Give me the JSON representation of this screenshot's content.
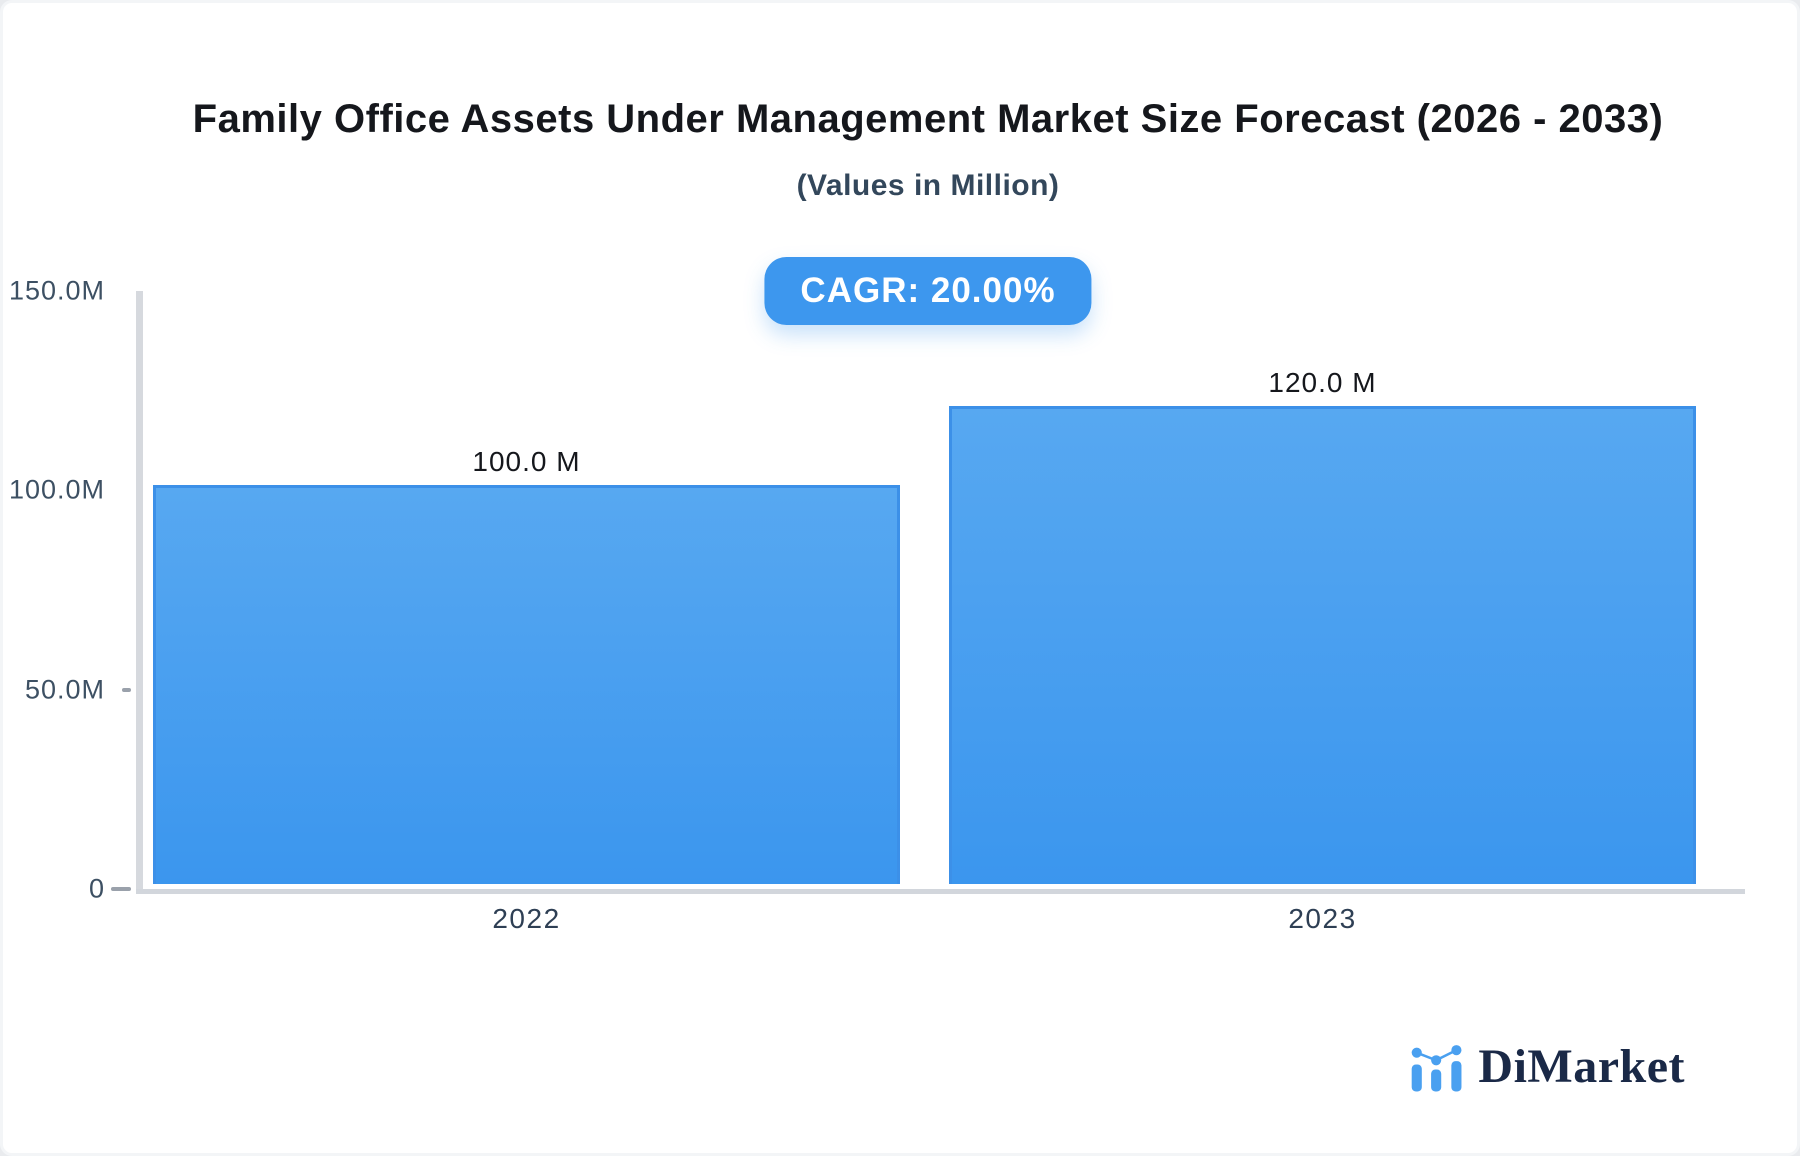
{
  "chart": {
    "title": "Family Office Assets Under Management Market Size Forecast (2026 - 2033)",
    "subtitle": "(Values in Million)",
    "cagr_label": "CAGR: 20.00%"
  },
  "chart_data": {
    "type": "bar",
    "title": "Family Office Assets Under Management Market Size Forecast (2026 - 2033)",
    "subtitle": "(Values in Million)",
    "cagr": "20.00%",
    "unit": "Million",
    "categories": [
      "2022",
      "2023"
    ],
    "values": [
      100.0,
      120.0
    ],
    "value_labels": [
      "100.0 M",
      "120.0 M"
    ],
    "xlabel": "",
    "ylabel": "",
    "ylim": [
      0,
      150
    ],
    "y_tick_values": [
      150,
      100,
      50,
      0
    ],
    "y_tick_labels": [
      "150.0M",
      "100.0M",
      "50.0M",
      "0"
    ],
    "y_tick_marks": [
      false,
      false,
      true,
      true
    ],
    "grid": false,
    "legend": "none",
    "bar_color_top": "#57a8f1",
    "bar_color_bottom": "#3b96ee",
    "bar_border_color": "#3c90e8"
  },
  "colors": {
    "badge_bg": "#3d97ee",
    "badge_text": "#ffffff",
    "axis_line": "#d4d7dc",
    "tick_dash": "#9aa1ab",
    "title_color": "#15171c",
    "subtitle_color": "#33475b",
    "axis_label_color": "#3d5063",
    "logo_navy": "#1a2947",
    "logo_blue": "#4aa0f0"
  },
  "footer": {
    "logo_text": "DiMarket"
  }
}
